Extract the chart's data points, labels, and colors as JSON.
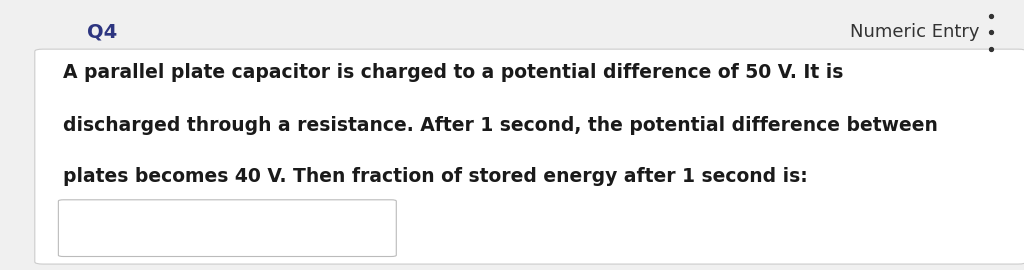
{
  "q_label": "Q4",
  "q_label_color": "#2d3580",
  "entry_type": "Numeric Entry",
  "entry_color": "#333333",
  "dots_color": "#333333",
  "body_text_lines": [
    "A parallel plate capacitor is charged to a potential difference of 50 V. It is",
    "discharged through a resistance. After 1 second, the potential difference between",
    "plates becomes 40 V. Then fraction of stored energy after 1 second is:"
  ],
  "body_text_color": "#1a1a1a",
  "bg_color": "#f0f0f0",
  "card_bg": "#ffffff",
  "card_border": "#cccccc",
  "input_border_color": "#bbbbbb",
  "input_bg_color": "#ffffff",
  "font_size_q": 14,
  "font_size_entry": 13,
  "font_size_body": 13.5
}
